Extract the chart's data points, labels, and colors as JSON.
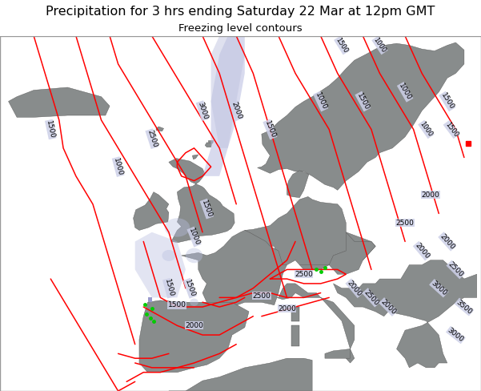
{
  "title": "Precipitation for 3 hrs ending Saturday 22 Mar at 12pm GMT",
  "subtitle": "Freezing level contours",
  "title_fontsize": 11.5,
  "subtitle_fontsize": 9.5,
  "figsize": [
    6.01,
    4.88
  ],
  "dpi": 100,
  "map_bg": "#cdd0e8",
  "title_bg": "#f0f0f0",
  "land_color": "#888888",
  "sea_color": "#cdd0e8",
  "lon_min": -26,
  "lon_max": 31,
  "lat_min": 34,
  "lat_max": 72
}
